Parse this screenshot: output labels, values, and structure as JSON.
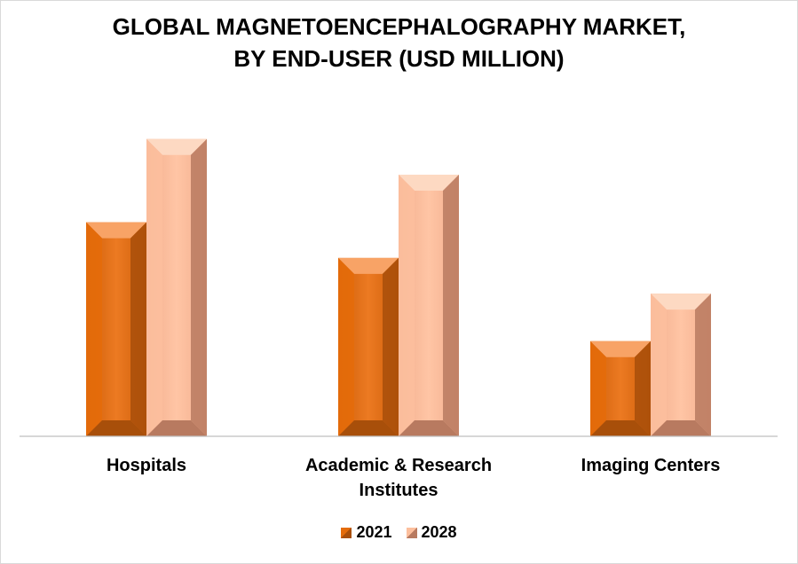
{
  "chart_data": {
    "type": "bar",
    "title_line1": "GLOBAL MAGNETOENCEPHALOGRAPHY  MARKET,",
    "title_line2": "BY END-USER (USD MILLION)",
    "categories": [
      {
        "line1": "Hospitals",
        "line2": ""
      },
      {
        "line1": "Academic & Research",
        "line2": "Institutes"
      },
      {
        "line1": "Imaging Centers",
        "line2": ""
      }
    ],
    "series": [
      {
        "name": "2021",
        "values": [
          72,
          60,
          32
        ],
        "color": "#e46c0a",
        "top_color": "#f8a366",
        "side_color": "#a84f0a"
      },
      {
        "name": "2028",
        "values": [
          100,
          88,
          48
        ],
        "color": "#fcbf9d",
        "top_color": "#fdd9c2",
        "side_color": "#b87a60"
      }
    ],
    "ylim": [
      0,
      105
    ],
    "grid": false,
    "legend_position": "bottom"
  }
}
